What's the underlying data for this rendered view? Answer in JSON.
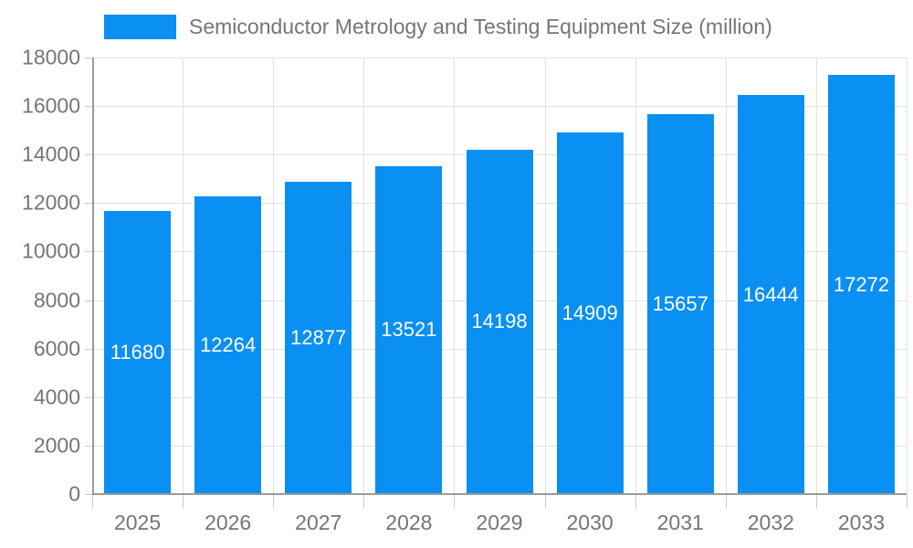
{
  "chart_data": {
    "type": "bar",
    "title": "Semiconductor Metrology and Testing Equipment Size (million)",
    "categories": [
      "2025",
      "2026",
      "2027",
      "2028",
      "2029",
      "2030",
      "2031",
      "2032",
      "2033"
    ],
    "values": [
      11680,
      12264,
      12877,
      13521,
      14198,
      14909,
      15657,
      16444,
      17272
    ],
    "series": [
      {
        "name": "Semiconductor Metrology and Testing Equipment Size (million)",
        "values": [
          11680,
          12264,
          12877,
          13521,
          14198,
          14909,
          15657,
          16444,
          17272
        ]
      }
    ],
    "xlabel": "",
    "ylabel": "",
    "ylim": [
      0,
      18000
    ],
    "ytick_step": 2000,
    "ytick_labels": [
      "0",
      "2000",
      "4000",
      "6000",
      "8000",
      "10000",
      "12000",
      "14000",
      "16000",
      "18000"
    ],
    "grid": true,
    "legend_position": "top-left",
    "value_labels_position": "inside-center",
    "colors": {
      "bar": "#0a8ff2",
      "value_label": "#ffffff",
      "axis_text": "#757575",
      "gridline": "#e2e2e2",
      "axis_line": "#9b9b9b",
      "tick": "#cccccc",
      "background": "#ffffff"
    }
  }
}
